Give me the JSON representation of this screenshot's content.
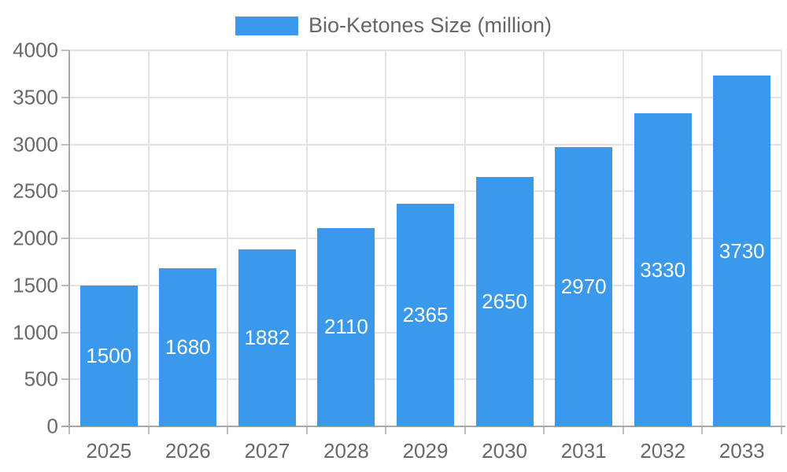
{
  "legend": {
    "label": "Bio-Ketones Size (million)"
  },
  "chart_data": {
    "type": "bar",
    "title": "",
    "legend_entries": [
      "Bio-Ketones Size (million)"
    ],
    "legend_position": "top-center",
    "categories": [
      "2025",
      "2026",
      "2027",
      "2028",
      "2029",
      "2030",
      "2031",
      "2032",
      "2033"
    ],
    "series": [
      {
        "name": "Bio-Ketones Size (million)",
        "values": [
          1500,
          1680,
          1882,
          2110,
          2365,
          2650,
          2970,
          3330,
          3730
        ]
      }
    ],
    "value_labels": "inside-center-white",
    "xlabel": "",
    "ylabel": "",
    "ylim": [
      0,
      4000
    ],
    "ytick_step": 500,
    "ytick_labels": [
      "0",
      "500",
      "1000",
      "1500",
      "2000",
      "2500",
      "3000",
      "3500",
      "4000"
    ],
    "grid": true
  },
  "colors": {
    "bar": "#3B99EC",
    "bar_label": "#FFFFFF",
    "axis_text": "#696969",
    "legend_text": "#666666",
    "axis_line": "#A8A8A8",
    "tick_mark": "#BDBDBD",
    "gridline": "#E3E3E3",
    "background": "#FFFFFF"
  }
}
